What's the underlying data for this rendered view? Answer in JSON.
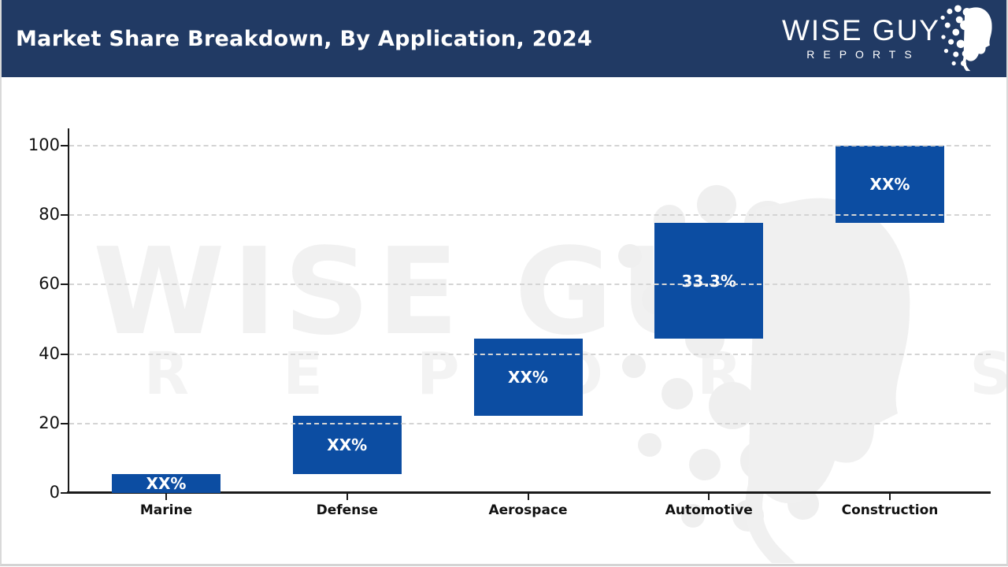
{
  "header": {
    "title": "Market Share Breakdown, By Application, 2024",
    "bg_color": "#213a64",
    "logo": {
      "line1": "WISE GUY",
      "line2": "REPORTS"
    }
  },
  "watermark": {
    "line1": "WISE GUY",
    "line2": "REPORTS"
  },
  "chart_data": {
    "type": "bar",
    "subtype": "floating-waterfall",
    "title": "Market Share Breakdown, By Application, 2024",
    "xlabel": "",
    "ylabel": "",
    "categories": [
      "Marine",
      "Defense",
      "Aerospace",
      "Automotive",
      "Construction"
    ],
    "segments": [
      {
        "category": "Marine",
        "start": 0,
        "end": 5.5,
        "label": "XX%"
      },
      {
        "category": "Defense",
        "start": 5.5,
        "end": 22.2,
        "label": "XX%"
      },
      {
        "category": "Aerospace",
        "start": 22.2,
        "end": 44.4,
        "label": "XX%"
      },
      {
        "category": "Automotive",
        "start": 44.4,
        "end": 77.8,
        "label": "33.3%"
      },
      {
        "category": "Construction",
        "start": 77.8,
        "end": 100,
        "label": "XX%"
      }
    ],
    "y_ticks": [
      0,
      20,
      40,
      60,
      80,
      100
    ],
    "ylim": [
      0,
      100
    ],
    "grid": "horizontal dashed",
    "legend": "none",
    "bar_color": "#0c4da2",
    "bar_label_color": "#ffffff",
    "axis_color": "#1a1a1a"
  }
}
